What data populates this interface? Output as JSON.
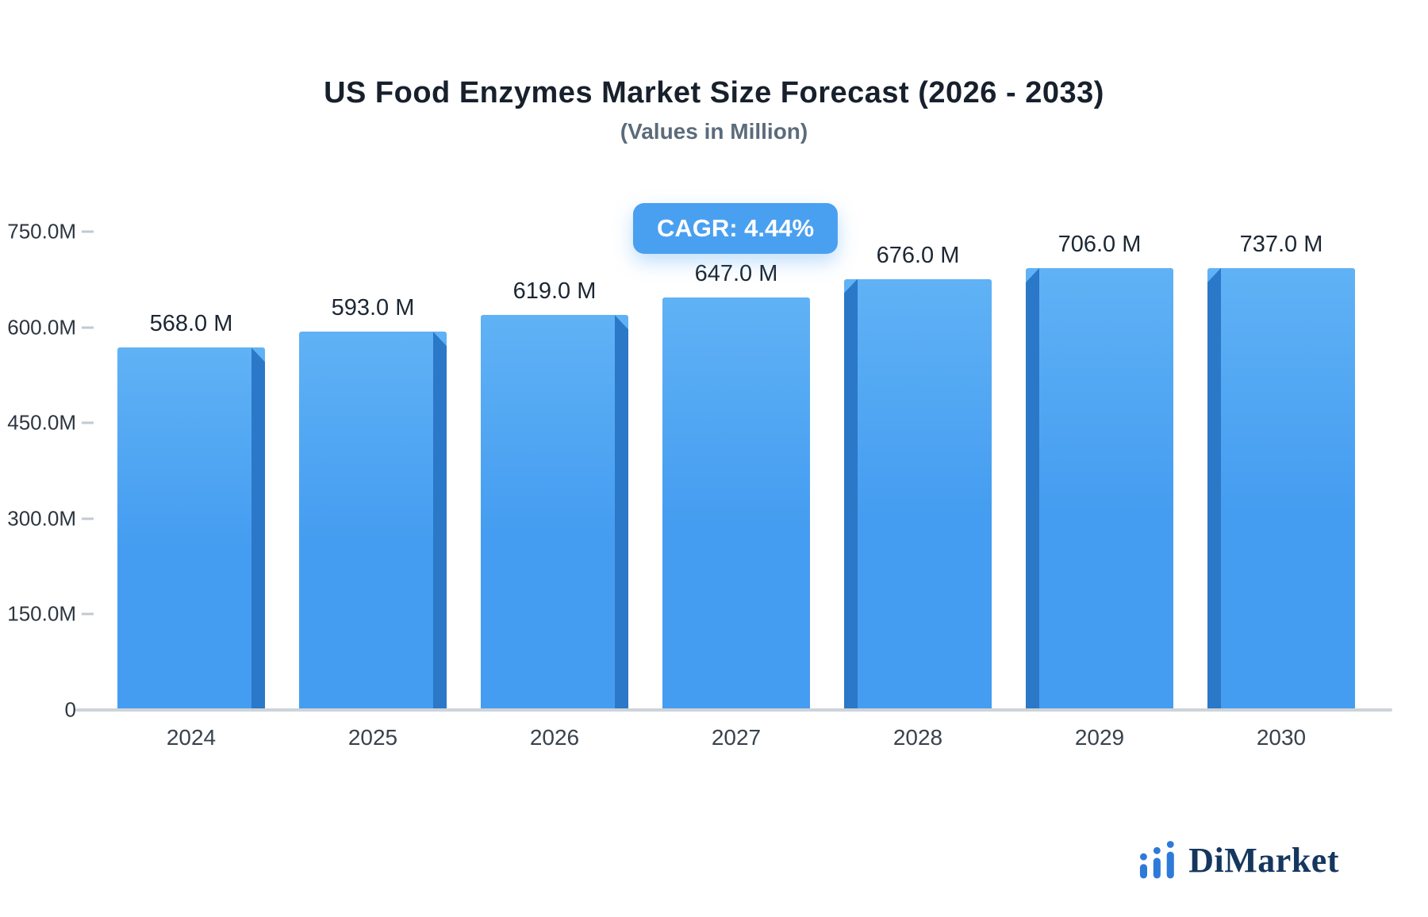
{
  "header": {
    "title": "US Food Enzymes Market Size Forecast (2026 - 2033)",
    "subtitle": "(Values in Million)"
  },
  "badge": {
    "label": "CAGR: 4.44%",
    "background_color": "#4aa0f0",
    "text_color": "#ffffff"
  },
  "chart_data": {
    "type": "bar",
    "title": "US Food Enzymes Market Size Forecast (2026 - 2033)",
    "subtitle": "(Values in Million)",
    "categories": [
      "2024",
      "2025",
      "2026",
      "2027",
      "2028",
      "2029",
      "2030"
    ],
    "values": [
      568,
      593,
      619,
      647,
      676,
      706,
      737
    ],
    "value_labels": [
      "568.0 M",
      "593.0 M",
      "619.0 M",
      "647.0 M",
      "676.0 M",
      "706.0 M",
      "737.0 M"
    ],
    "y_ticks": [
      "750.0M",
      "600.0M",
      "450.0M",
      "300.0M",
      "150.0M",
      "0"
    ],
    "ylim": [
      0,
      750
    ],
    "xlabel": "",
    "ylabel": "",
    "grid": false,
    "legend": false,
    "bar_color": "#459df1",
    "bar_color_light": "#60b2f5",
    "bar_side_color": "#2b77c8",
    "annotation": "CAGR: 4.44%"
  },
  "logo": {
    "text": "DiMarket",
    "icon": "bar-chart-icon",
    "icon_color": "#2e7ad8",
    "text_color": "#15375f"
  }
}
